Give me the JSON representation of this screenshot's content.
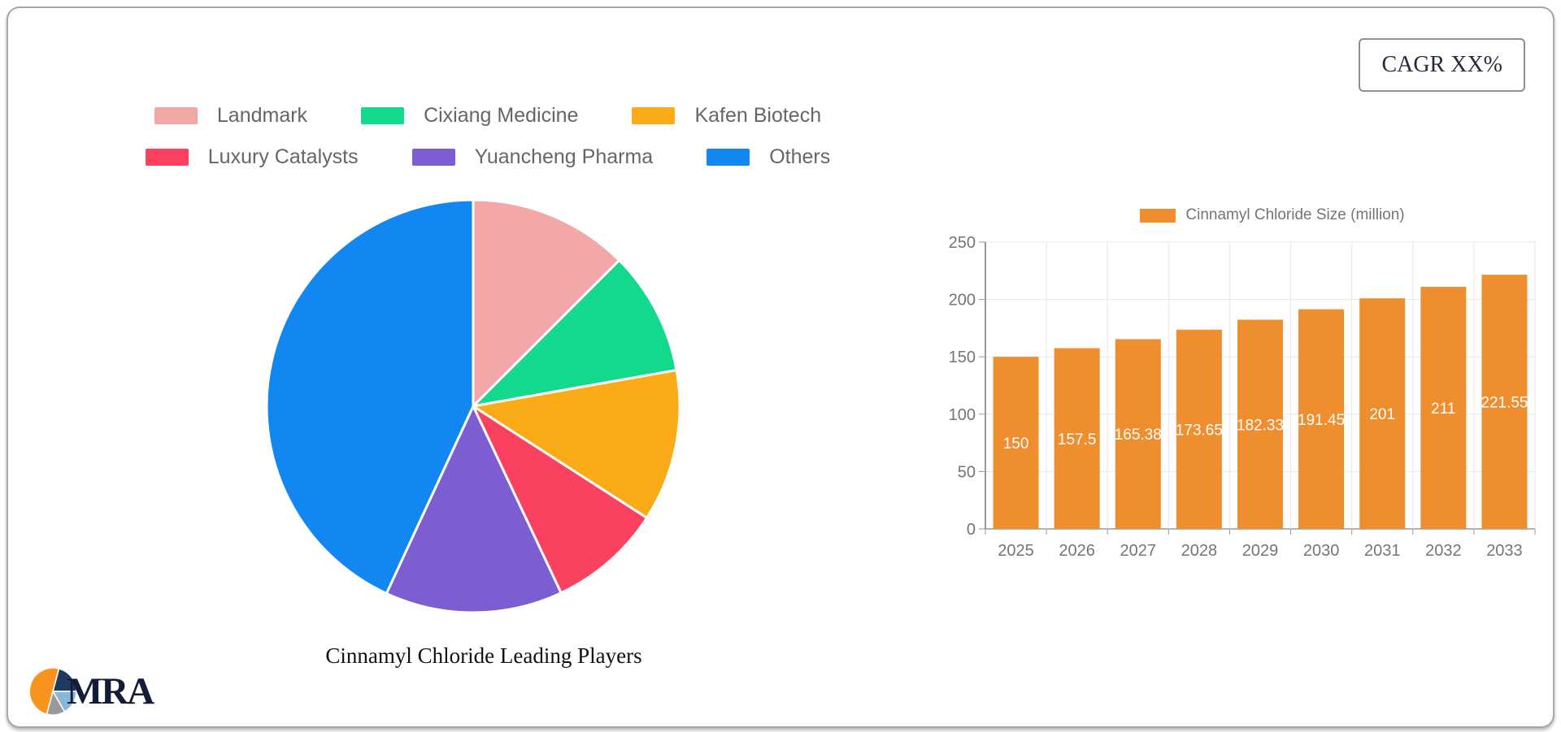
{
  "card": {
    "cagr_label": "CAGR XX%"
  },
  "logo": {
    "text": "MRA",
    "icon_colors": {
      "orange": "#f7941e",
      "navy": "#1f3a5f",
      "light_blue": "#8ab6d8",
      "gray": "#9a9a9a"
    }
  },
  "colors": {
    "bar_orange": "#ef8e2e",
    "grid_light": "#e7e7e7",
    "axis_line": "#999999",
    "axis_text": "#757575",
    "legend_text": "#666666",
    "bar_value_text": "#ffffff"
  },
  "chart_data": [
    {
      "type": "pie",
      "title": "Cinnamyl Chloride Leading Players",
      "labels": [
        "Landmark",
        "Cixiang Medicine",
        "Kafen Biotech",
        "Luxury Catalysts",
        "Yuancheng Pharma",
        "Others"
      ],
      "values": [
        12.5,
        9.7,
        11.9,
        8.9,
        13.9,
        43.1
      ],
      "colors": [
        "#f4a7a7",
        "#12d98b",
        "#fbab17",
        "#fa4160",
        "#7d5dd2",
        "#1287f2"
      ],
      "legend_position": "top",
      "start_angle_deg": 0,
      "direction": "clockwise",
      "legend_rows": [
        [
          0,
          1,
          2
        ],
        [
          3,
          4,
          5
        ]
      ]
    },
    {
      "type": "bar",
      "title": "",
      "legend": "Cinnamyl Chloride Size (million)",
      "categories": [
        "2025",
        "2026",
        "2027",
        "2028",
        "2029",
        "2030",
        "2031",
        "2032",
        "2033"
      ],
      "values": [
        150,
        157.5,
        165.38,
        173.65,
        182.33,
        191.45,
        201,
        211,
        221.55
      ],
      "value_labels": [
        "150",
        "157.5",
        "165.38",
        "173.65",
        "182.33",
        "191.45",
        "201",
        "211",
        "221.55"
      ],
      "xlabel": "",
      "ylabel": "",
      "ylim": [
        0,
        250
      ],
      "yticks": [
        0,
        50,
        100,
        150,
        200,
        250
      ],
      "grid": true,
      "legend_position": "top",
      "bar_color": "#ef8e2e",
      "value_label_position": "inside-middle"
    }
  ]
}
